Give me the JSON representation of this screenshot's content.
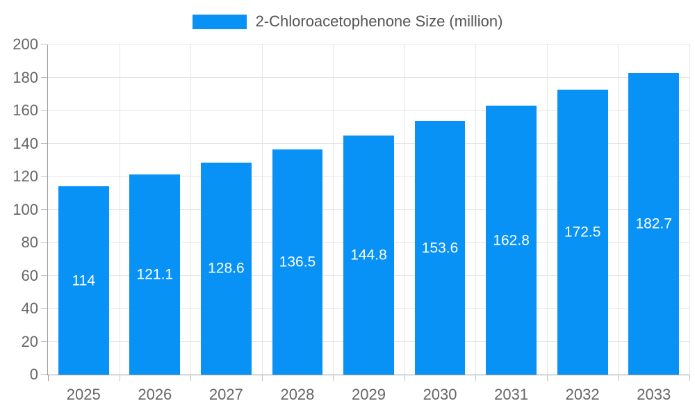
{
  "chart_data": {
    "type": "bar",
    "title": "",
    "legend_entries": [
      "2-Chloroacetophenone Size (million)"
    ],
    "legend_position": "top-center",
    "categories": [
      "2025",
      "2026",
      "2027",
      "2028",
      "2029",
      "2030",
      "2031",
      "2032",
      "2033"
    ],
    "series": [
      {
        "name": "2-Chloroacetophenone Size (million)",
        "values": [
          114,
          121.1,
          128.6,
          136.5,
          144.8,
          153.6,
          162.8,
          172.5,
          182.7
        ]
      }
    ],
    "value_labels": [
      "114",
      "121.1",
      "128.6",
      "136.5",
      "144.8",
      "153.6",
      "162.8",
      "172.5",
      "182.7"
    ],
    "xlabel": "",
    "ylabel": "",
    "ylim": [
      0,
      200
    ],
    "ytick_step": 20,
    "ytick_labels": [
      "0",
      "20",
      "40",
      "60",
      "80",
      "100",
      "120",
      "140",
      "160",
      "180",
      "200"
    ],
    "grid": true,
    "colors": {
      "bar": "#0892f5",
      "bar_label": "#ffffff",
      "axis_text": "#666666",
      "legend_text": "#555555",
      "grid_line": "#e6e6e6",
      "axis_line": "#9a9a9a",
      "tick": "#c0c0c0",
      "background": "#ffffff"
    }
  }
}
